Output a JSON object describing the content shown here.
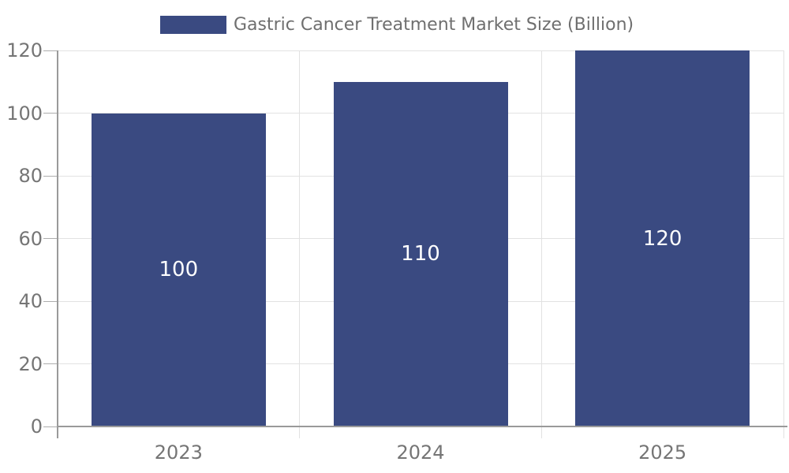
{
  "legend": {
    "label": "Gastric Cancer Treatment Market Size (Billion)"
  },
  "chart_data": {
    "type": "bar",
    "title": "Gastric Cancer Treatment Market Size (Billion)",
    "categories": [
      "2023",
      "2024",
      "2025"
    ],
    "values": [
      100,
      110,
      120
    ],
    "bar_value_labels": [
      "100",
      "110",
      "120"
    ],
    "xlabel": "",
    "ylabel": "",
    "ylim": [
      0,
      120
    ],
    "yticks": [
      0,
      20,
      40,
      60,
      80,
      100,
      120
    ],
    "grid": true,
    "legend_position": "top-center",
    "bar_label_position": "inside-center",
    "colors": {
      "bar": "#3A4A81",
      "bar_label_text": "#FFFFFF",
      "grid": "#E2E2E2",
      "tick_stub": "#ADADAD",
      "axis": "#9A9A9A",
      "tick_text": "#757575",
      "legend_text": "#6F6F6F",
      "background": "#FFFFFF"
    }
  }
}
